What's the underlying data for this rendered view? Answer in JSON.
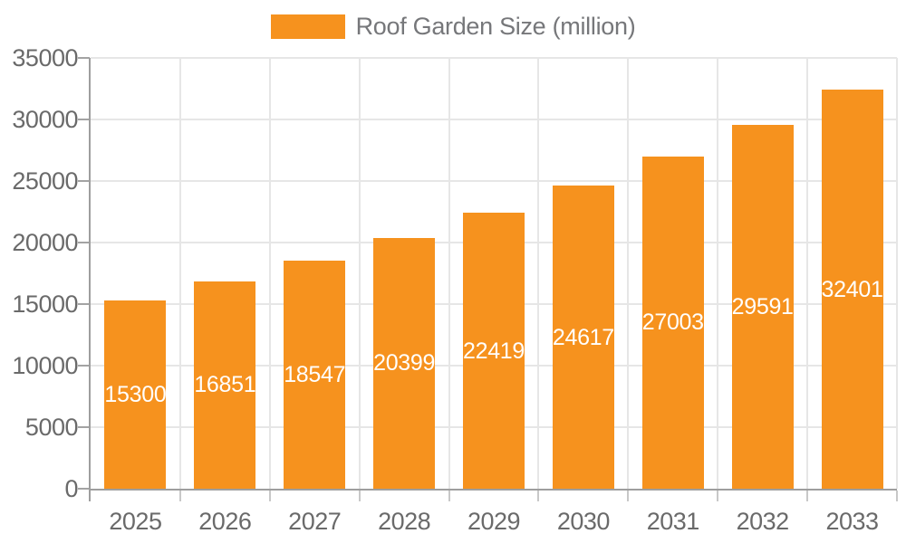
{
  "chart_data": {
    "type": "bar",
    "title": "",
    "legend": "Roof Garden Size (million)",
    "legend_position": "top-center",
    "categories": [
      "2025",
      "2026",
      "2027",
      "2028",
      "2029",
      "2030",
      "2031",
      "2032",
      "2033"
    ],
    "series": [
      {
        "name": "Roof Garden Size (million)",
        "values": [
          15300,
          16851,
          18547,
          20399,
          22419,
          24617,
          27003,
          29591,
          32401
        ]
      }
    ],
    "xlabel": "",
    "ylabel": "",
    "ylim": [
      0,
      35000
    ],
    "yticks": [
      0,
      5000,
      10000,
      15000,
      20000,
      25000,
      30000,
      35000
    ],
    "grid": true,
    "value_label_style": "white-inside-bar"
  },
  "colors": {
    "bar": "#F6921E",
    "gridline": "#e6e6e6",
    "axis": "#9e9e9e",
    "y_tick": "#a3a3a3",
    "x_tick": "#c8c8c8",
    "axis_label_text": "#6a6a6a",
    "legend_text": "#76777a",
    "bar_value_text": "#ffffff",
    "background": "#ffffff"
  }
}
